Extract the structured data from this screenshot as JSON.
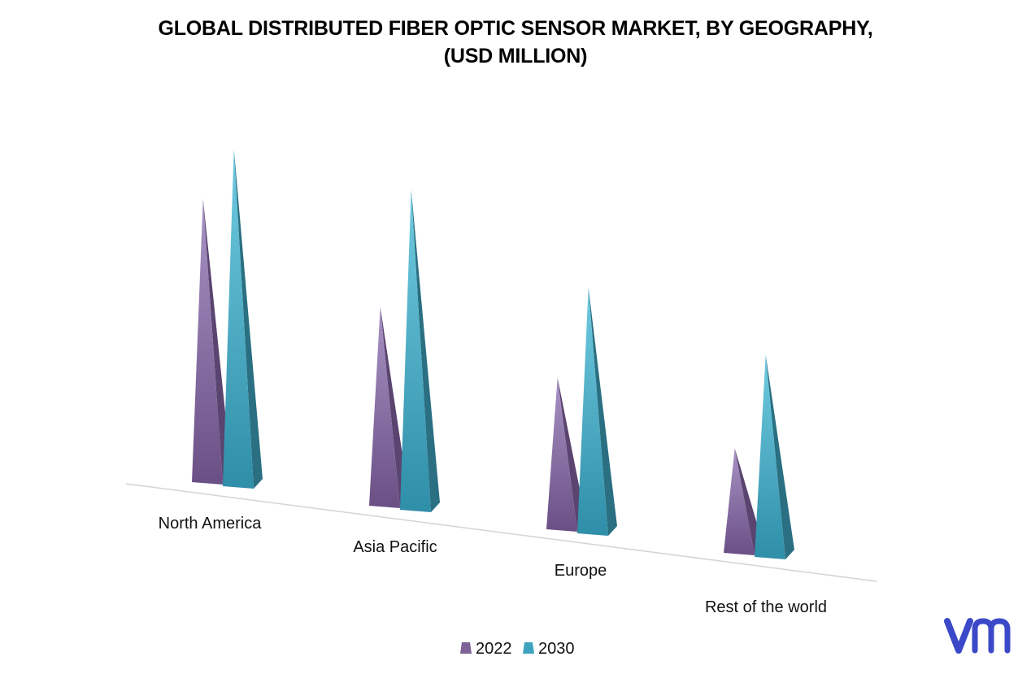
{
  "chart_data": {
    "type": "bar",
    "title_line1": "GLOBAL DISTRIBUTED FIBER OPTIC SENSOR MARKET, BY GEOGRAPHY,",
    "title_line2": "(USD MILLION)",
    "categories": [
      "North America",
      "Asia Pacific",
      "Europe",
      "Rest of the world"
    ],
    "series": [
      {
        "name": "2022",
        "values": [
          84,
          59,
          45,
          31
        ],
        "color": "#7d6396",
        "light": "#a58fc0",
        "dark": "#5a4470"
      },
      {
        "name": "2030",
        "values": [
          100,
          95,
          73,
          60
        ],
        "color": "#3ea3be",
        "light": "#62c0d8",
        "dark": "#2a6f82"
      }
    ],
    "ylim": [
      0,
      100
    ],
    "grid": false,
    "legend_position": "bottom-center"
  },
  "brand": {
    "logo_color": "#3b49c9"
  }
}
